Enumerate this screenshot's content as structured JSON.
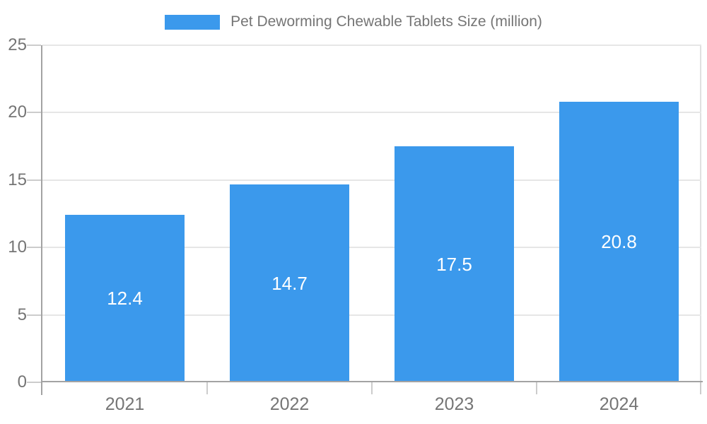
{
  "chart_data": {
    "type": "bar",
    "title": "Pet Deworming Chewable Tablets Size (million)",
    "legend_position": "top",
    "categories": [
      "2021",
      "2022",
      "2023",
      "2024"
    ],
    "values": [
      12.4,
      14.7,
      17.5,
      20.8
    ],
    "data_labels": [
      "12.4",
      "14.7",
      "17.5",
      "20.8"
    ],
    "xlabel": "",
    "ylabel": "",
    "ylim": [
      0,
      25
    ],
    "yticks": [
      0,
      5,
      10,
      15,
      20,
      25
    ],
    "ytick_labels": [
      "0",
      "5",
      "10",
      "15",
      "20",
      "25"
    ],
    "grid": true,
    "colors": {
      "bar": "#3b99ec",
      "grid": "#e6e6e6",
      "axis": "#a3a3a3",
      "tick": "#cccccc",
      "axis_text": "#757575",
      "value_label_text": "#ffffff"
    }
  }
}
